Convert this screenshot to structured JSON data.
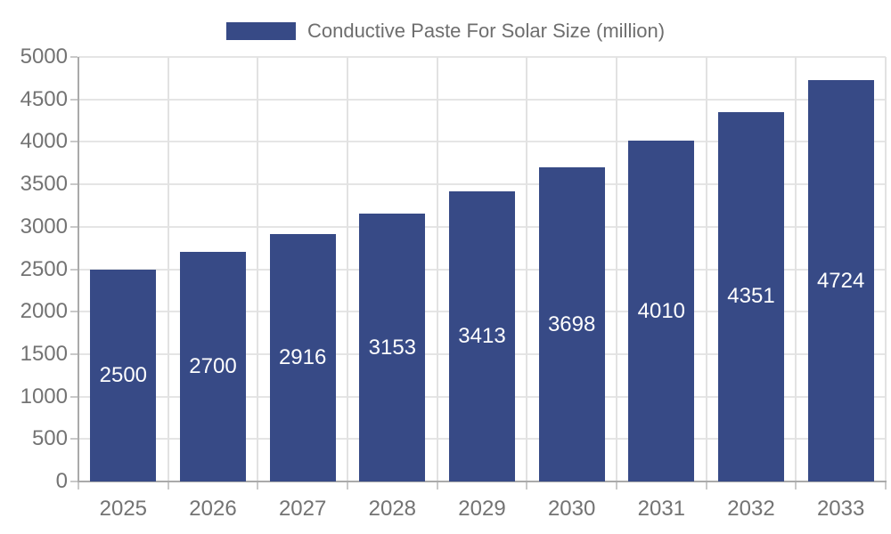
{
  "chart_data": {
    "type": "bar",
    "title": "Conductive Paste For Solar Size (million)",
    "legend": {
      "position": "top",
      "label": "Conductive Paste For Solar Size (million)"
    },
    "categories": [
      "2025",
      "2026",
      "2027",
      "2028",
      "2029",
      "2030",
      "2031",
      "2032",
      "2033"
    ],
    "series": [
      {
        "name": "Conductive Paste For Solar Size (million)",
        "values": [
          2500,
          2700,
          2916,
          3153,
          3413,
          3698,
          4010,
          4351,
          4724
        ]
      }
    ],
    "xlabel": "",
    "ylabel": "",
    "ylim": [
      0,
      5000
    ],
    "ytick_step": 500,
    "yticks": [
      0,
      500,
      1000,
      1500,
      2000,
      2500,
      3000,
      3500,
      4000,
      4500,
      5000
    ],
    "grid": true,
    "value_labels": "inside-center",
    "colors": {
      "bar": "#374a86",
      "value_label": "#ffffff",
      "axis_text": "#737373"
    }
  }
}
